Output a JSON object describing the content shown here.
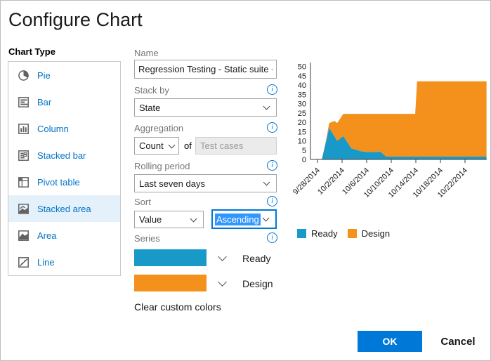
{
  "dialog": {
    "title": "Configure Chart"
  },
  "chart_type": {
    "label": "Chart Type",
    "items": [
      {
        "label": "Pie",
        "icon": "pie-chart-icon",
        "selected": false
      },
      {
        "label": "Bar",
        "icon": "bar-chart-icon",
        "selected": false
      },
      {
        "label": "Column",
        "icon": "column-chart-icon",
        "selected": false
      },
      {
        "label": "Stacked bar",
        "icon": "stacked-bar-chart-icon",
        "selected": false
      },
      {
        "label": "Pivot table",
        "icon": "pivot-table-icon",
        "selected": false
      },
      {
        "label": "Stacked area",
        "icon": "stacked-area-chart-icon",
        "selected": true
      },
      {
        "label": "Area",
        "icon": "area-chart-icon",
        "selected": false
      },
      {
        "label": "Line",
        "icon": "line-chart-icon",
        "selected": false
      }
    ]
  },
  "form": {
    "name": {
      "label": "Name",
      "value": "Regression Testing - Static suite - Ch"
    },
    "stack_by": {
      "label": "Stack by",
      "value": "State"
    },
    "aggregation": {
      "label": "Aggregation",
      "value": "Count",
      "of_label": "of",
      "field_value": "Test cases"
    },
    "rolling_period": {
      "label": "Rolling period",
      "value": "Last seven days"
    },
    "sort": {
      "label": "Sort",
      "value": "Value",
      "order_value": "Ascending"
    },
    "series": {
      "label": "Series",
      "items": [
        {
          "name": "Ready",
          "color": "#1899C8"
        },
        {
          "name": "Design",
          "color": "#F3911C"
        }
      ]
    },
    "clear_colors_label": "Clear custom colors"
  },
  "buttons": {
    "ok": "OK",
    "cancel": "Cancel"
  },
  "colors": {
    "accent": "#0078D7",
    "link_blue": "#0072C6",
    "selection_highlight": "#3296FF"
  },
  "chart_data": {
    "type": "area",
    "stacked": true,
    "title": "",
    "xlabel": "",
    "ylabel": "",
    "x_axis": {
      "tick_labels": [
        "9/28/2014",
        "10/2/2014",
        "10/6/2014",
        "10/10/2014",
        "10/14/2014",
        "10/18/2014",
        "10/22/2014"
      ],
      "tick_days": [
        0,
        4,
        8,
        12,
        16,
        20,
        24
      ],
      "range_days": [
        0,
        27.5
      ]
    },
    "y_axis": {
      "ticks": [
        0,
        5,
        10,
        15,
        20,
        25,
        30,
        35,
        40,
        45,
        50
      ],
      "range": [
        0,
        50
      ]
    },
    "grid": false,
    "legend_position": "bottom",
    "series": [
      {
        "name": "Ready",
        "color": "#1899C8",
        "points": [
          [
            0,
            0
          ],
          [
            0.7,
            0
          ],
          [
            1.9,
            17
          ],
          [
            3.2,
            10
          ],
          [
            4.2,
            12.5
          ],
          [
            5.5,
            6
          ],
          [
            7,
            4.5
          ],
          [
            8,
            4
          ],
          [
            9.7,
            4
          ],
          [
            10.2,
            4.2
          ],
          [
            11.2,
            1.5
          ],
          [
            27.5,
            1.5
          ]
        ]
      },
      {
        "name": "Design",
        "color": "#F3911C",
        "points": [
          [
            0,
            0
          ],
          [
            0.7,
            0
          ],
          [
            1.4,
            0.5
          ],
          [
            1.9,
            2.5
          ],
          [
            2.8,
            8.5
          ],
          [
            4.2,
            12
          ],
          [
            5.5,
            18.5
          ],
          [
            7,
            20
          ],
          [
            8,
            20.5
          ],
          [
            9.7,
            20.5
          ],
          [
            10.2,
            20.3
          ],
          [
            11.2,
            23
          ],
          [
            15.9,
            23
          ],
          [
            16.2,
            40.5
          ],
          [
            27.5,
            40.5
          ]
        ]
      }
    ]
  }
}
